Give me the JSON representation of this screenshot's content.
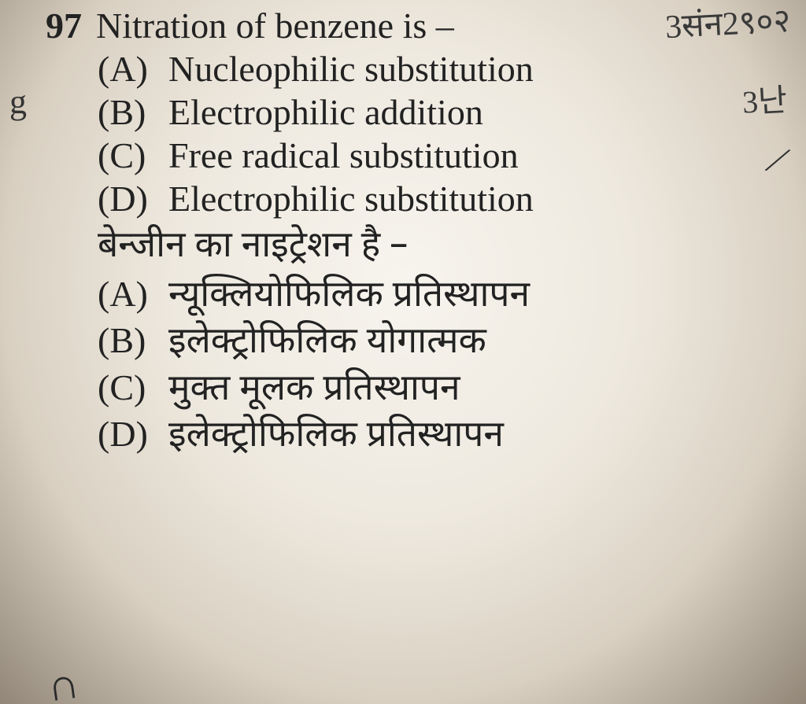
{
  "question": {
    "number": "97",
    "title_en": "Nitration of benzene is –",
    "title_hi": "बेन्जीन का नाइट्रेशन है –"
  },
  "options_en": [
    {
      "label": "(A)",
      "text": "Nucleophilic substitution"
    },
    {
      "label": "(B)",
      "text": "Electrophilic addition"
    },
    {
      "label": "(C)",
      "text": "Free radical substitution"
    },
    {
      "label": "(D)",
      "text": "Electrophilic substitution"
    }
  ],
  "options_hi": [
    {
      "label": "(A)",
      "text": "न्यूक्लियोफिलिक प्रतिस्थापन"
    },
    {
      "label": "(B)",
      "text": "इलेक्ट्रोफिलिक योगात्मक"
    },
    {
      "label": "(C)",
      "text": "मुक्त मूलक प्रतिस्थापन"
    },
    {
      "label": "(D)",
      "text": "इलेक्ट्रोफिलिक प्रतिस्थापन"
    }
  ],
  "handwriting": {
    "top_right": "3संन2९०२",
    "side_right": "3난",
    "left_margin": "g",
    "tick": "⁄",
    "bottom_scribble": "∩"
  },
  "style": {
    "font_size_pt": 34,
    "text_color": "#1a1a1a",
    "bg_inner": "#f7f4ee",
    "bg_outer": "#918677",
    "hand_color": "#3a3a3a"
  }
}
